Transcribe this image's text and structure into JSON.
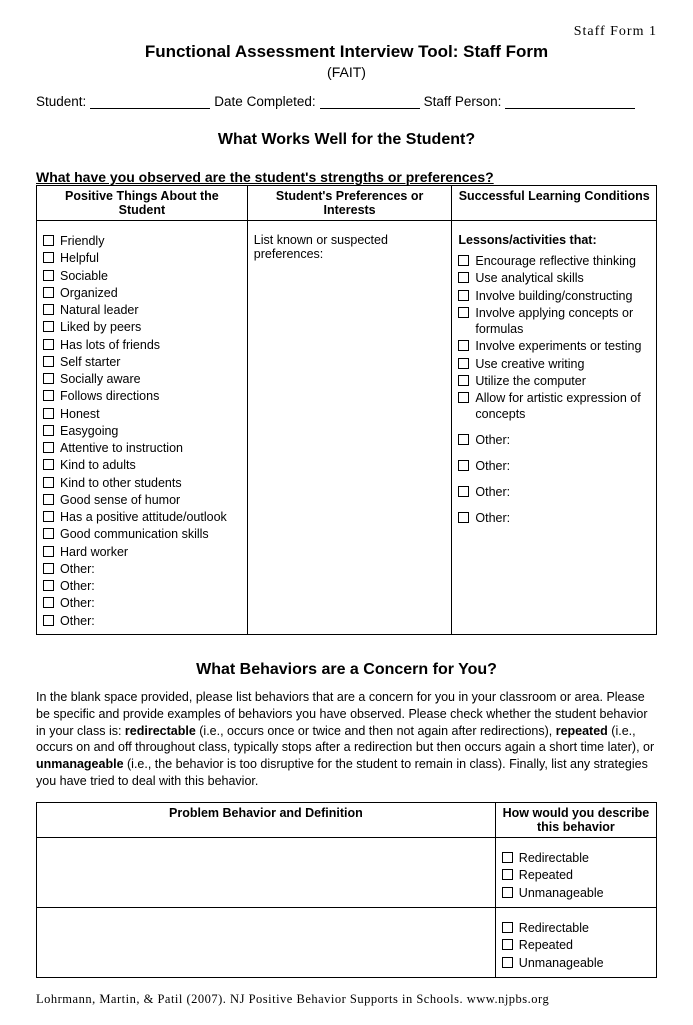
{
  "header": {
    "formCode": "Staff Form 1",
    "title": "Functional Assessment Interview Tool:  Staff Form",
    "subtitle": "(FAIT)"
  },
  "info": {
    "studentLabel": "Student:",
    "dateLabel": "Date Completed:",
    "staffLabel": "Staff Person:"
  },
  "section1": {
    "heading": "What Works Well for the Student?",
    "question": "What have you observed are the student's strengths or preferences?",
    "col1": {
      "header": "Positive Things About the Student",
      "items": [
        "Friendly",
        "Helpful",
        "Sociable",
        "Organized",
        "Natural leader",
        "Liked by peers",
        "Has lots of friends",
        "Self starter",
        "Socially aware",
        "Follows directions",
        "Honest",
        "Easygoing",
        "Attentive to instruction",
        "Kind to adults",
        "Kind to other students",
        "Good sense of humor",
        " Has a positive attitude/outlook",
        " Good communication skills",
        " Hard worker",
        "Other:",
        "Other:",
        "Other:",
        "Other:"
      ]
    },
    "col2": {
      "header": "Student's Preferences or Interests",
      "prompt": "List known or suspected preferences:"
    },
    "col3": {
      "header": "Successful Learning Conditions",
      "subheader": "Lessons/activities that:",
      "items": [
        "Encourage reflective thinking",
        "Use analytical skills",
        "Involve building/constructing",
        "Involve applying concepts or formulas",
        "Involve experiments or testing",
        "Use creative writing",
        "Utilize the computer",
        "Allow for artistic expression of concepts"
      ],
      "others": [
        "Other:",
        "Other:",
        "Other:",
        "Other:"
      ]
    }
  },
  "section2": {
    "heading": "What Behaviors are a Concern for You?",
    "instructionsParts": {
      "p1": "In the blank space provided, please list behaviors that are a concern for you in your classroom or area.  Please be specific and provide examples of behaviors you have observed.  Please check whether the student behavior in your class is: ",
      "b1": "redirectable",
      "p2": " (i.e., occurs once or twice and then not again after redirections), ",
      "b2": "repeated",
      "p3": " (i.e., occurs on and off throughout class, typically stops after a redirection but then occurs again a short time later), or ",
      "b3": "unmanageable",
      "p4": " (i.e., the behavior is too disruptive for the student to remain in class).  Finally, list any strategies you have tried to deal with this behavior."
    },
    "table": {
      "h1": "Problem Behavior and Definition",
      "h2": "How would you describe this behavior",
      "opts": [
        "Redirectable",
        "Repeated",
        "Unmanageable"
      ]
    }
  },
  "footer": "Lohrmann, Martin, & Patil (2007).  NJ Positive Behavior Supports in Schools.  www.njpbs.org"
}
